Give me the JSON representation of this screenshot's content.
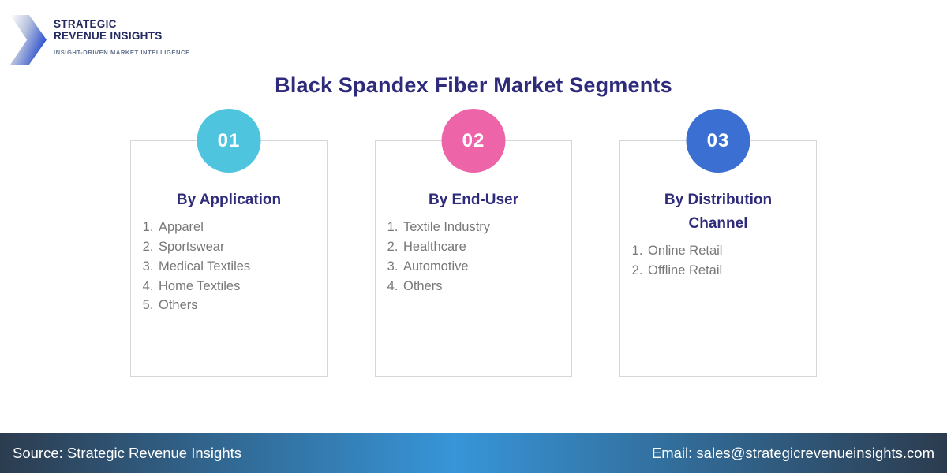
{
  "logo": {
    "line1": "STRATEGIC",
    "line2": "REVENUE INSIGHTS",
    "tagline": "INSIGHT-DRIVEN MARKET INTELLIGENCE"
  },
  "title": "Black Spandex Fiber Market Segments",
  "colors": {
    "title_text": "#2d2b7a",
    "list_text": "#787878",
    "card_border": "#d7d7d7",
    "footer_left": "#2c3c4f",
    "footer_center": "#3795d8",
    "logo_blue": "#2a49c4"
  },
  "chart_data": {
    "type": "table",
    "title": "Black Spandex Fiber Market Segments",
    "segments": [
      {
        "number": "01",
        "circle_color": "#4ec4de",
        "heading": "By Application",
        "items": [
          "Apparel",
          "Sportswear",
          "Medical Textiles",
          "Home Textiles",
          "Others"
        ]
      },
      {
        "number": "02",
        "circle_color": "#ee64a9",
        "heading": "By End-User",
        "items": [
          "Textile Industry",
          "Healthcare",
          "Automotive",
          "Others"
        ]
      },
      {
        "number": "03",
        "circle_color": "#3b6fd1",
        "heading": "By Distribution Channel",
        "items": [
          "Online Retail",
          "Offline Retail"
        ]
      }
    ]
  },
  "footer": {
    "source": "Source: Strategic Revenue Insights",
    "email": "Email: sales@strategicrevenueinsights.com"
  }
}
